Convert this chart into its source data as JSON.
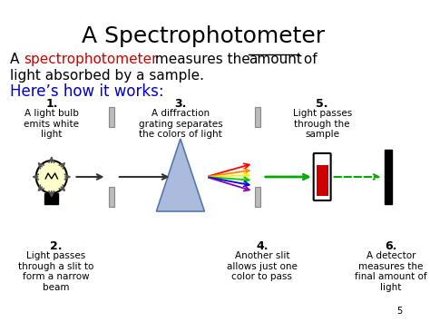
{
  "title": "A Spectrophotometer",
  "subtitle_parts": [
    {
      "text": "A ",
      "color": "black",
      "underline": false
    },
    {
      "text": "spectrophotometer",
      "color": "red",
      "underline": false
    },
    {
      "text": " measures the ",
      "color": "black",
      "underline": false
    },
    {
      "text": "amount",
      "color": "black",
      "underline": true
    },
    {
      "text": " of",
      "color": "black",
      "underline": false
    }
  ],
  "subtitle_line2": "light absorbed by a sample.",
  "heres_how": "Here’s how it works:",
  "step1_label": "1.",
  "step1_text": "A light bulb\nemits white\nlight",
  "step2_label": "2.",
  "step2_text": "Light passes\nthrough a slit to\nform a narrow\nbeam",
  "step3_label": "3.",
  "step3_text": "A diffraction\ngrating separates\nthe colors of light",
  "step4_label": "4.",
  "step4_text": "Another slit\nallows just one\ncolor to pass",
  "step5_label": "5.",
  "step5_text": "Light passes\nthrough the\nsample",
  "step6_label": "6.",
  "step6_text": "A detector\nmeasures the\nfinal amount of\nlight",
  "page_number": "5",
  "bg_color": "#ffffff",
  "title_color": "#000000",
  "body_color": "#000000",
  "red_color": "#cc0000",
  "blue_color": "#0000cc",
  "green_color": "#00aa00",
  "prism_color": "#aabbdd",
  "bulb_color": "#ffffcc",
  "tube_color": "#cc0000"
}
